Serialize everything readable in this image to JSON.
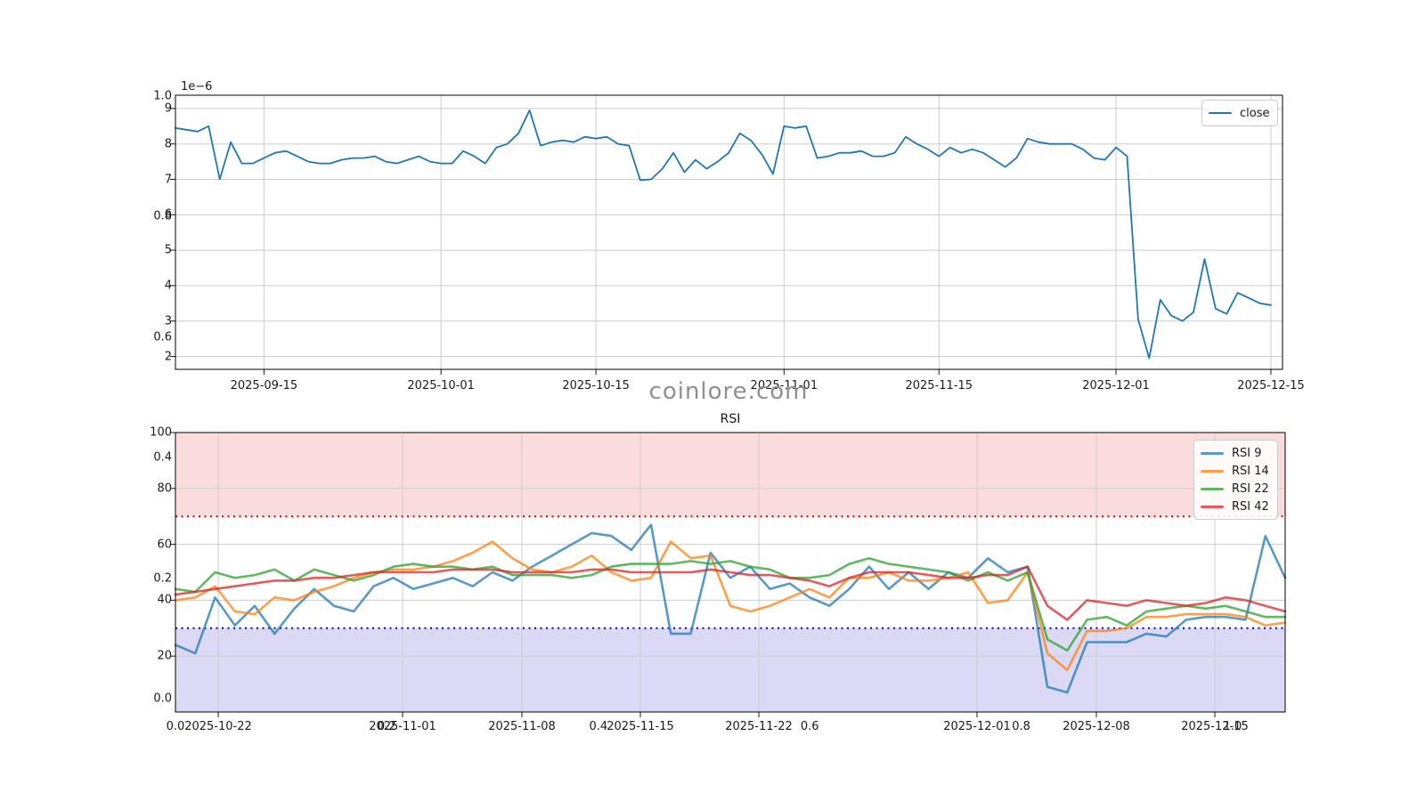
{
  "watermark": "coinlore.com",
  "background_axes": {
    "x_tick_labels": [
      "0.0",
      "0.2",
      "0.4",
      "0.6",
      "0.8",
      "1.0"
    ],
    "y_tick_labels": [
      "0.0",
      "0.2",
      "0.4",
      "0.6",
      "0.8",
      "1.0"
    ]
  },
  "chart_data": [
    {
      "type": "line",
      "name": "close",
      "legend_label": "close",
      "legend_position": "upper right",
      "color": "#1f77b4",
      "grid": true,
      "y_offset_label": "1e−6",
      "y_unit_multiplier": 1e-06,
      "x_start": "2025-09-07",
      "x_freq": "daily",
      "x_ticks": [
        {
          "label": "2025-09-15",
          "day": 8
        },
        {
          "label": "2025-10-01",
          "day": 24
        },
        {
          "label": "2025-10-15",
          "day": 38
        },
        {
          "label": "2025-11-01",
          "day": 55
        },
        {
          "label": "2025-11-15",
          "day": 69
        },
        {
          "label": "2025-12-01",
          "day": 85
        },
        {
          "label": "2025-12-15",
          "day": 99
        }
      ],
      "y_ticks": [
        2,
        3,
        4,
        5,
        6,
        7,
        8,
        9
      ],
      "ylim_approx": [
        1.6,
        9.4
      ],
      "values": [
        8.45,
        8.4,
        8.35,
        8.5,
        7.0,
        8.05,
        7.45,
        7.45,
        7.6,
        7.75,
        7.8,
        7.65,
        7.5,
        7.45,
        7.45,
        7.55,
        7.6,
        7.6,
        7.65,
        7.5,
        7.45,
        7.55,
        7.65,
        7.5,
        7.45,
        7.45,
        7.8,
        7.65,
        7.45,
        7.9,
        8.0,
        8.3,
        8.95,
        7.95,
        8.05,
        8.1,
        8.05,
        8.2,
        8.15,
        8.2,
        8.0,
        7.95,
        6.98,
        7.0,
        7.3,
        7.75,
        7.2,
        7.55,
        7.3,
        7.5,
        7.75,
        8.3,
        8.1,
        7.7,
        7.15,
        8.5,
        8.45,
        8.5,
        7.6,
        7.65,
        7.75,
        7.75,
        7.8,
        7.65,
        7.65,
        7.75,
        8.2,
        8.0,
        7.85,
        7.65,
        7.9,
        7.75,
        7.85,
        7.75,
        7.55,
        7.35,
        7.6,
        8.15,
        8.05,
        8.0,
        8.0,
        8.0,
        7.85,
        7.6,
        7.55,
        7.9,
        7.65,
        3.05,
        1.95,
        3.6,
        3.15,
        3.0,
        3.25,
        4.75,
        3.35,
        3.2,
        3.8,
        3.65,
        3.5,
        3.45
      ]
    },
    {
      "type": "line",
      "title": "RSI",
      "legend_position": "upper right",
      "grid": true,
      "x_start": "2025-10-20",
      "x_freq": "daily",
      "x_tick_labels": [
        "2025-10-22",
        "2025-11-01",
        "2025-11-08",
        "2025-11-15",
        "2025-11-22",
        "2025-12-01",
        "2025-12-08",
        "2025-12-15"
      ],
      "y_ticks": [
        20,
        40,
        60,
        80,
        100
      ],
      "ylim": [
        0,
        100
      ],
      "overbought_level": 70,
      "oversold_level": 30,
      "overbought_band_color": "#fbdcdc",
      "oversold_band_color": "#dbd9f3",
      "overbought_line_color": "#e00000",
      "oversold_line_color": "#0000dd",
      "series": [
        {
          "name": "RSI 9",
          "color": "#1f77b4",
          "values": [
            24,
            21,
            41,
            31,
            38,
            28,
            37,
            44,
            38,
            36,
            45,
            48,
            44,
            46,
            48,
            45,
            50,
            47,
            52,
            56,
            60,
            64,
            63,
            58,
            67,
            28,
            28,
            57,
            48,
            52,
            44,
            46,
            41,
            38,
            44,
            52,
            44,
            50,
            44,
            50,
            48,
            55,
            50,
            52,
            9,
            7,
            25,
            25,
            25,
            28,
            27,
            33,
            34,
            34,
            33,
            63,
            48
          ]
        },
        {
          "name": "RSI 14",
          "color": "#ff7f0e",
          "values": [
            40,
            41,
            45,
            36,
            35,
            41,
            40,
            43,
            45,
            48,
            50,
            51,
            51,
            52,
            54,
            57,
            61,
            55,
            51,
            50,
            52,
            56,
            50,
            47,
            48,
            61,
            55,
            56,
            38,
            36,
            38,
            41,
            44,
            41,
            48,
            48,
            50,
            47,
            47,
            48,
            50,
            39,
            40,
            50,
            21,
            15,
            29,
            29,
            30,
            34,
            34,
            35,
            35,
            35,
            34,
            31,
            32
          ]
        },
        {
          "name": "RSI 22",
          "color": "#2ca02c",
          "values": [
            44,
            43,
            50,
            48,
            49,
            51,
            47,
            51,
            49,
            47,
            49,
            52,
            53,
            52,
            52,
            51,
            52,
            49,
            49,
            49,
            48,
            49,
            52,
            53,
            53,
            53,
            54,
            53,
            54,
            52,
            51,
            48,
            48,
            49,
            53,
            55,
            53,
            52,
            51,
            50,
            47,
            50,
            47,
            50,
            26,
            22,
            33,
            34,
            31,
            36,
            37,
            38,
            37,
            38,
            36,
            34,
            34
          ]
        },
        {
          "name": "RSI 42",
          "color": "#d62728",
          "values": [
            42,
            43,
            44,
            45,
            46,
            47,
            47,
            48,
            48,
            49,
            50,
            50,
            50,
            50,
            51,
            51,
            51,
            50,
            50,
            50,
            50,
            51,
            51,
            50,
            50,
            50,
            50,
            51,
            50,
            49,
            49,
            48,
            47,
            45,
            48,
            50,
            50,
            50,
            49,
            48,
            48,
            49,
            49,
            52,
            38,
            33,
            40,
            39,
            38,
            40,
            39,
            38,
            39,
            41,
            40,
            38,
            36
          ]
        }
      ]
    }
  ]
}
